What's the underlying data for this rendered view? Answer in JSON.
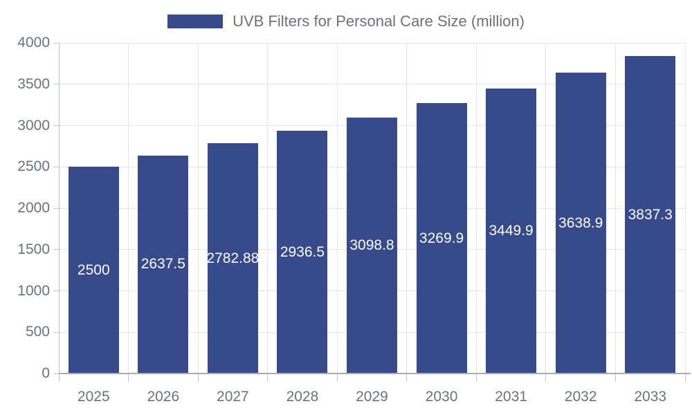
{
  "chart_data": {
    "type": "bar",
    "legend_label": "UVB Filters for Personal Care Size (million)",
    "categories": [
      "2025",
      "2026",
      "2027",
      "2028",
      "2029",
      "2030",
      "2031",
      "2032",
      "2033"
    ],
    "values": [
      2500,
      2637.5,
      2782.88,
      2936.5,
      3098.8,
      3269.9,
      3449.9,
      3638.9,
      3837.3
    ],
    "bar_labels": [
      "2500",
      "2637.5",
      "2782.88",
      "2936.5",
      "3098.8",
      "3269.9",
      "3449.9",
      "3638.9",
      "3837.3"
    ],
    "xlabel": "",
    "ylabel": "",
    "ylim": [
      0,
      4000
    ],
    "yticks": [
      0,
      500,
      1000,
      1500,
      2000,
      2500,
      3000,
      3500,
      4000
    ],
    "grid": true,
    "legend_position": "top-center",
    "colors": {
      "bar": "#364A8C",
      "bar_label": "#ffffff",
      "grid_line": "#e4e5e9",
      "x_axis_line": "#a9abae",
      "y_axis_line": "#b7b9be",
      "tick_mark": "#c3c5ca",
      "tick_text": "#6e7176",
      "legend_text": "#6e7176",
      "background": "#ffffff"
    }
  }
}
